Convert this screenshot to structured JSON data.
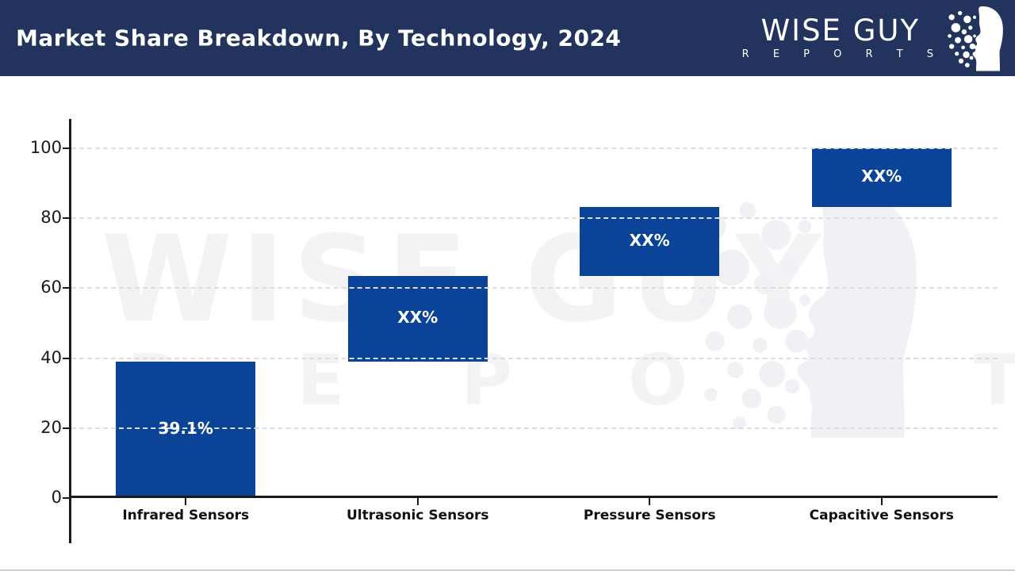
{
  "header": {
    "title": "Market Share Breakdown, By Technology, 2024",
    "logo": {
      "line1": "WISE GUY",
      "line2": "R E P O R T S"
    }
  },
  "watermark": {
    "line1": "WISE GUY",
    "line2": "R E P O R T S"
  },
  "chart_data": {
    "type": "bar",
    "subtype": "waterfall",
    "title": "Market Share Breakdown, By Technology, 2024",
    "categories": [
      "Infrared Sensors",
      "Ultrasonic Sensors",
      "Pressure Sensors",
      "Capacitive Sensors"
    ],
    "segments": [
      {
        "category": "Infrared Sensors",
        "start": 0,
        "end": 39.1,
        "label": "39.1%"
      },
      {
        "category": "Ultrasonic Sensors",
        "start": 39.1,
        "end": 63.5,
        "label": "XX%"
      },
      {
        "category": "Pressure Sensors",
        "start": 63.5,
        "end": 83.2,
        "label": "XX%"
      },
      {
        "category": "Capacitive Sensors",
        "start": 83.2,
        "end": 100,
        "label": "XX%"
      }
    ],
    "xlabel": "",
    "ylabel": "",
    "ylim": [
      0,
      100
    ],
    "yticks": [
      0,
      20,
      40,
      60,
      80,
      100
    ],
    "grid": "horizontal-dashed",
    "legend": "none",
    "bar_color": "#0a4397",
    "bar_label_color": "#ffffff"
  },
  "colors": {
    "header_bg": "#22345E",
    "bar": "#0a4397",
    "gridline": "#dcdee1",
    "axis": "#1a1a1a",
    "watermark": "#f2f3f5"
  }
}
